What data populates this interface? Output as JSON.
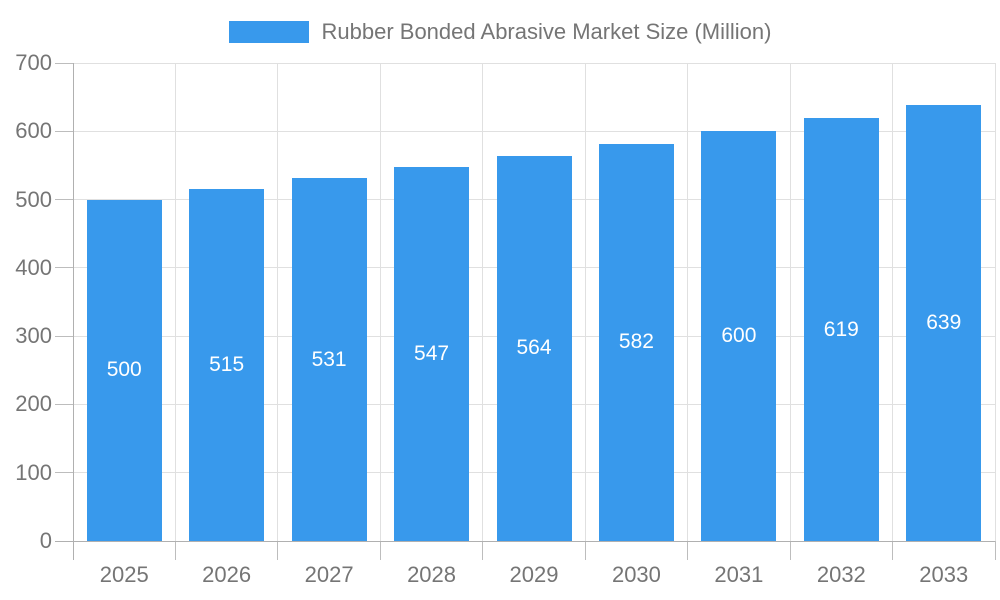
{
  "chart_data": {
    "type": "bar",
    "title": "Rubber Bonded Abrasive Market Size (Million)",
    "categories": [
      "2025",
      "2026",
      "2027",
      "2028",
      "2029",
      "2030",
      "2031",
      "2032",
      "2033"
    ],
    "series": [
      {
        "name": "Rubber Bonded Abrasive Market Size (Million)",
        "values": [
          500,
          515,
          531,
          547,
          564,
          582,
          600,
          619,
          639
        ]
      }
    ],
    "xlabel": "",
    "ylabel": "",
    "ylim": [
      0,
      700
    ],
    "yticks": [
      0,
      100,
      200,
      300,
      400,
      500,
      600,
      700
    ],
    "grid": true,
    "legend_position": "top",
    "show_bar_value_labels": true
  },
  "style": {
    "bar_color": "#3899EC",
    "bar_label_color": "#FFFFFF",
    "axis_text_color": "#757575",
    "legend_text_color": "#757575",
    "gridline_color": "#E0E0E0",
    "axis_line_color": "#B0B0B0",
    "tick_color": "#BDBDBD",
    "background_color": "#FFFFFF"
  }
}
